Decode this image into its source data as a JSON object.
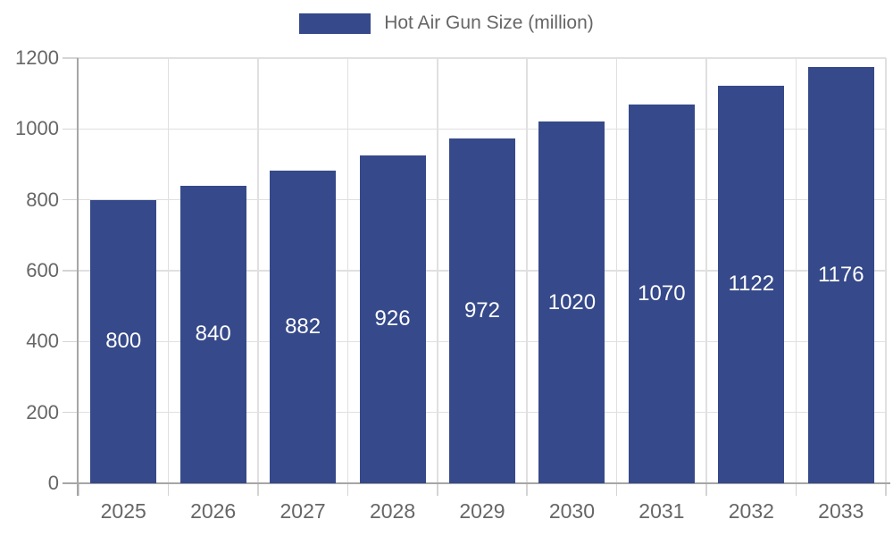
{
  "legend": {
    "label": "Hot Air Gun Size (million)"
  },
  "chart_data": {
    "type": "bar",
    "title": "Hot Air Gun Size (million)",
    "categories": [
      "2025",
      "2026",
      "2027",
      "2028",
      "2029",
      "2030",
      "2031",
      "2032",
      "2033"
    ],
    "values": [
      800,
      840,
      882,
      926,
      972,
      1020,
      1070,
      1122,
      1176
    ],
    "series": [
      {
        "name": "Hot Air Gun Size (million)",
        "values": [
          800,
          840,
          882,
          926,
          972,
          1020,
          1070,
          1122,
          1176
        ]
      }
    ],
    "xlabel": "",
    "ylabel": "",
    "ylim": [
      0,
      1200
    ],
    "yticks": [
      0,
      200,
      400,
      600,
      800,
      1000,
      1200
    ],
    "grid": true,
    "legend_position": "top-center",
    "bar_labels_inside": true,
    "colors": {
      "bar": "#36498a",
      "bar_label_text": "#ffffff",
      "axis_text": "#666666",
      "gridline": "#e0e0e0",
      "tick_line": "#d4d4d4",
      "axis_line": "#a6a6a6",
      "background": "#ffffff"
    }
  }
}
